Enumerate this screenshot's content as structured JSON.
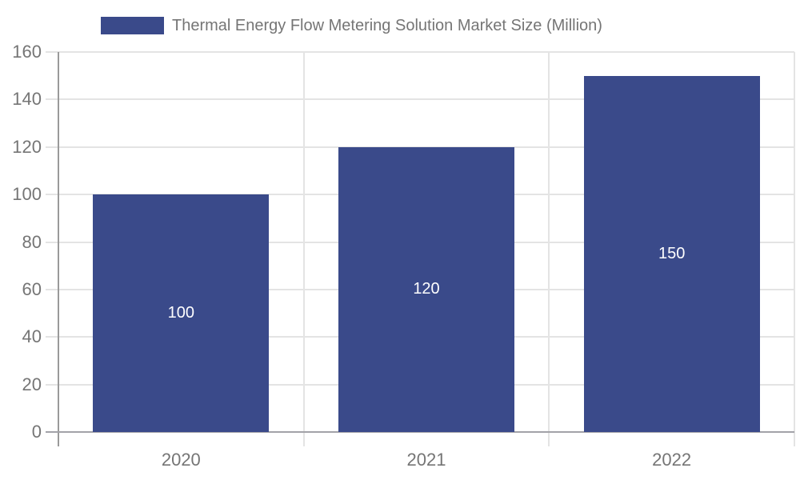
{
  "legend": {
    "label": "Thermal Energy Flow Metering Solution Market Size (Million)",
    "swatch_color": "#3a4a8a"
  },
  "chart_data": {
    "type": "bar",
    "title": "Thermal Energy Flow Metering Solution Market Size (Million)",
    "categories": [
      "2020",
      "2021",
      "2022"
    ],
    "values": [
      100,
      120,
      150
    ],
    "xlabel": "",
    "ylabel": "",
    "ylim": [
      0,
      160
    ],
    "ytick_step": 20,
    "grid": true,
    "legend_position": "top",
    "bar_color": "#3a4a8a",
    "bar_value_label_color": "#ffffff",
    "axis_text_color": "#757575",
    "grid_color": "#e4e4e4",
    "axis_line_color": "#9a9a9a"
  }
}
